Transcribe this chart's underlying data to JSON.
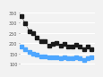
{
  "years": [
    2004,
    2005,
    2006,
    2007,
    2008,
    2009,
    2010,
    2011,
    2012,
    2013,
    2014,
    2015,
    2016,
    2017,
    2018,
    2019,
    2020,
    2021,
    2022
  ],
  "male": [
    330,
    295,
    260,
    248,
    228,
    210,
    210,
    190,
    195,
    200,
    188,
    198,
    185,
    182,
    192,
    185,
    172,
    185,
    173
  ],
  "female": [
    185,
    170,
    158,
    148,
    145,
    138,
    136,
    132,
    130,
    133,
    128,
    133,
    128,
    126,
    130,
    126,
    118,
    126,
    130
  ],
  "male_color": "#1a1a1a",
  "female_color": "#4da6ff",
  "background_color": "#f2f2f2",
  "plot_bg_color": "#f2f2f2",
  "grid_color": "#ffffff",
  "ylim": [
    80,
    370
  ],
  "xlim": [
    2003.5,
    2022.8
  ],
  "linewidth": 0.9,
  "markersize": 2.2,
  "yticks": [
    100,
    150,
    200,
    250,
    300,
    350
  ],
  "ytick_labels": [
    "100",
    "150",
    "200",
    "250",
    "300",
    "350"
  ],
  "tick_fontsize": 3.5,
  "tick_color": "#555555"
}
